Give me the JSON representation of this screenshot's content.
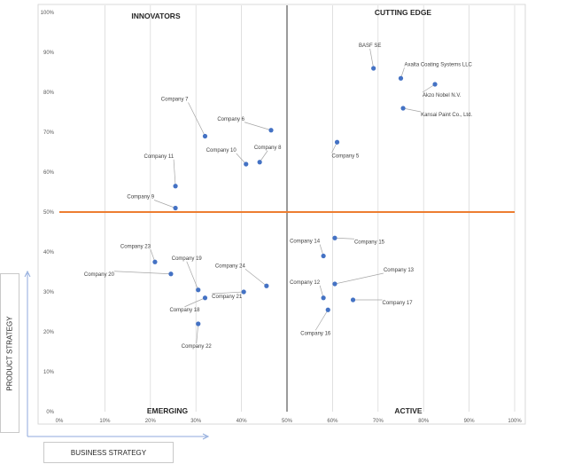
{
  "chart_data": {
    "type": "scatter",
    "xlabel": "BUSINESS STRATEGY",
    "ylabel": "PRODUCT STRATEGY",
    "xlim": [
      0,
      100
    ],
    "ylim": [
      0,
      100
    ],
    "x_ticks": [
      "0%",
      "10%",
      "20%",
      "30%",
      "40%",
      "50%",
      "60%",
      "70%",
      "80%",
      "90%",
      "100%"
    ],
    "y_ticks": [
      "0%",
      "10%",
      "20%",
      "30%",
      "40%",
      "50%",
      "60%",
      "70%",
      "80%",
      "90%",
      "100%"
    ],
    "grid": "vertical",
    "vertical_divider": 50,
    "horizontal_divider": 50,
    "quadrants": {
      "top_left": "INNOVATORS",
      "top_right": "CUTTING EDGE",
      "bottom_left": "EMERGING",
      "bottom_right": "ACTIVE"
    },
    "colors": {
      "point": "#4472c4",
      "horizontal_divider": "#ed7d31",
      "vertical_divider": "#808080",
      "gridline": "#d9d9d9"
    },
    "points": [
      {
        "name": "BASF SE",
        "x": 69,
        "y": 86
      },
      {
        "name": "Axalta Coating Systems LLC",
        "x": 75,
        "y": 83.5
      },
      {
        "name": "Akzo Nobel N.V.",
        "x": 82.5,
        "y": 82
      },
      {
        "name": "Kansai Paint Co., Ltd.",
        "x": 75.5,
        "y": 76
      },
      {
        "name": "Company 5",
        "x": 61,
        "y": 67.5
      },
      {
        "name": "Company 6",
        "x": 46.5,
        "y": 70.5
      },
      {
        "name": "Company 7",
        "x": 32,
        "y": 69
      },
      {
        "name": "Company 8",
        "x": 44,
        "y": 62.5
      },
      {
        "name": "Company 10",
        "x": 41,
        "y": 62
      },
      {
        "name": "Company 11",
        "x": 25.5,
        "y": 56.5
      },
      {
        "name": "Company 9",
        "x": 25.5,
        "y": 51
      },
      {
        "name": "Company 14",
        "x": 58,
        "y": 39
      },
      {
        "name": "Company 15",
        "x": 60.5,
        "y": 43.5
      },
      {
        "name": "Company 13",
        "x": 60.5,
        "y": 32
      },
      {
        "name": "Company 12",
        "x": 58,
        "y": 28.5
      },
      {
        "name": "Company 17",
        "x": 64.5,
        "y": 28
      },
      {
        "name": "Company 16",
        "x": 59,
        "y": 25.5
      },
      {
        "name": "Company 23",
        "x": 21,
        "y": 37.5
      },
      {
        "name": "Company 20",
        "x": 24.5,
        "y": 34.5
      },
      {
        "name": "Company 19",
        "x": 30.5,
        "y": 30.5
      },
      {
        "name": "Company 18",
        "x": 32,
        "y": 28.5
      },
      {
        "name": "Company 24",
        "x": 45.5,
        "y": 31.5
      },
      {
        "name": "Company 21",
        "x": 40.5,
        "y": 30
      },
      {
        "name": "Company 22",
        "x": 30.5,
        "y": 22
      }
    ]
  }
}
